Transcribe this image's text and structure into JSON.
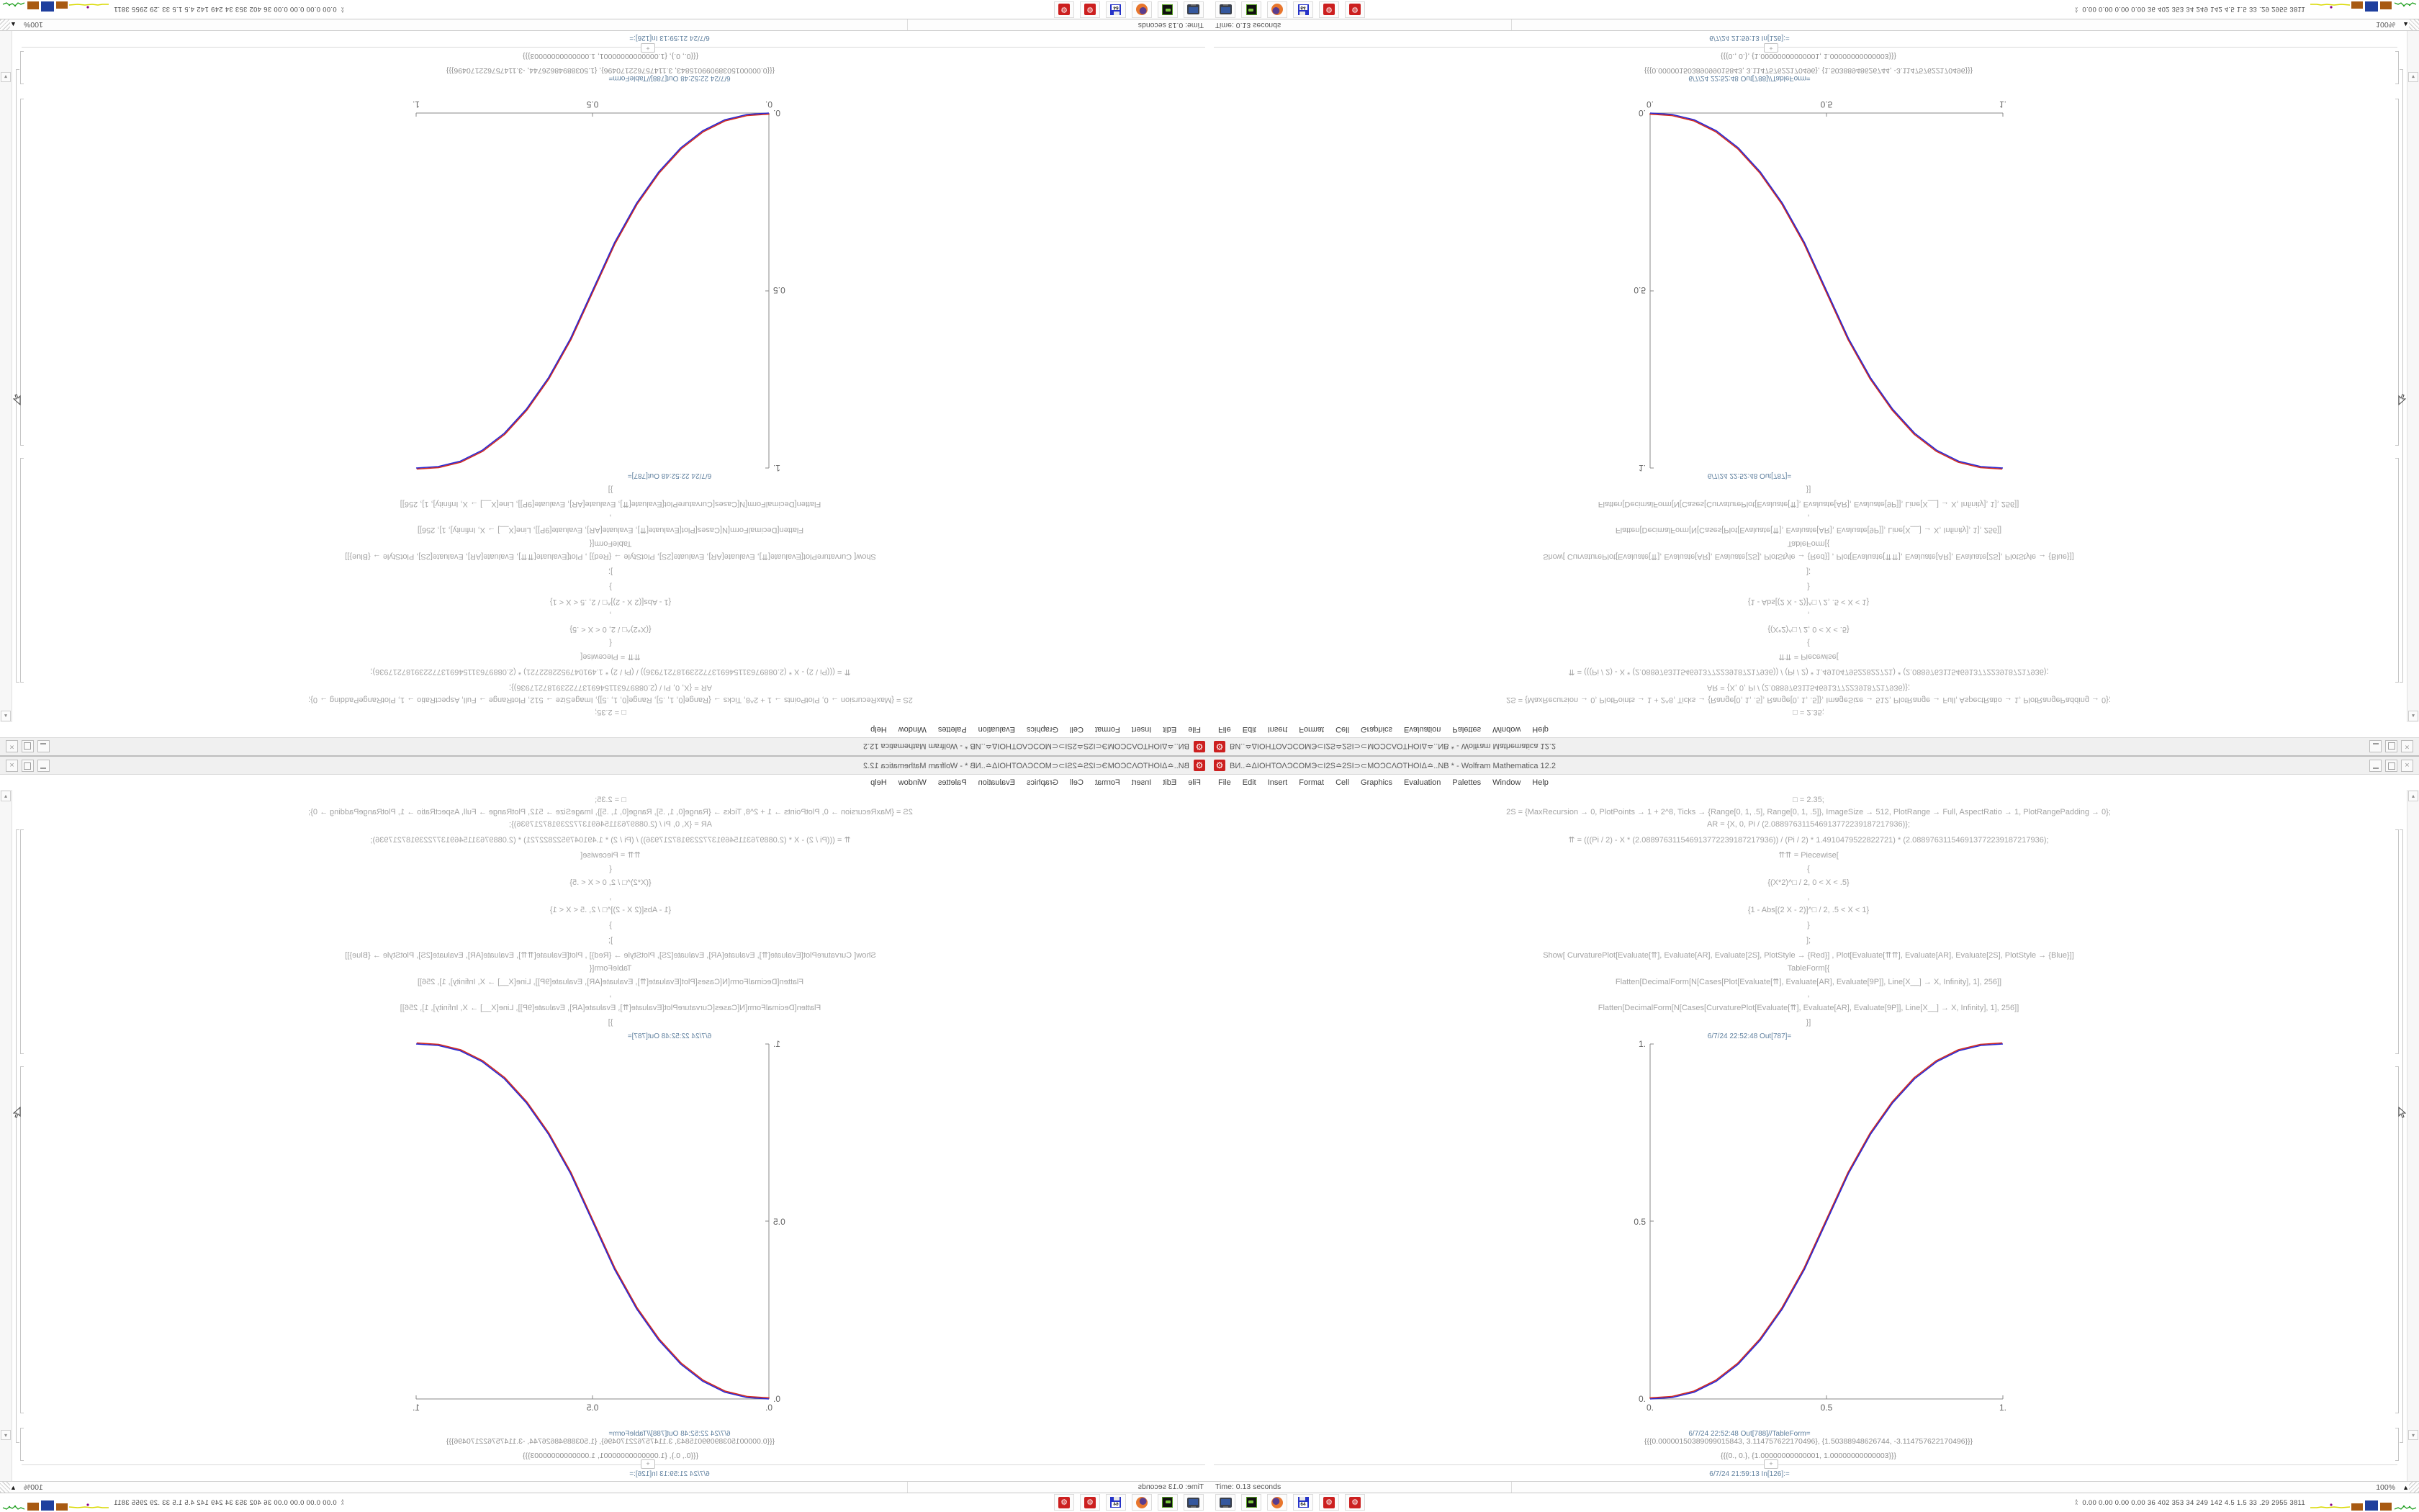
{
  "window": {
    "title": "ВИ..≏ΔΙΟΗΤΟΛϽCOMЭ⊂Ι2S≏2SΙ⊃⊂MOϽCΛΟΤΗΟΙΔ≏..NB * - Wolfram Mathematica 12.2",
    "menu": [
      "File",
      "Edit",
      "Insert",
      "Format",
      "Cell",
      "Graphics",
      "Evaluation",
      "Palettes",
      "Window",
      "Help"
    ],
    "minimize_glyph": "",
    "close_glyph": "×",
    "status_time": "Time: 0.13 seconds",
    "zoom_level": "100%",
    "zoom_popup_glyph": "▲",
    "scroll_up_glyph": "▴",
    "scroll_dropdown_glyph": "▾"
  },
  "notebook": {
    "lines": [
      "□ = 2.35;",
      "2S = {MaxRecursion → 0, PlotPoints → 1 + 2^8, Ticks → {Range[0, 1, .5], Range[0, 1, .5]}, ImageSize → 512, PlotRange → Full, AspectRatio → 1, PlotRangePadding → 0};",
      "AR = {X, 0, Pi / (2.088976311546913772239187217936)};",
      "⇈ = (((Pi / 2) - X * (2.088976311546913772239187217936)) / (Pi / 2) * 1.4910479522822721) * (2.088976311546913772239187217936);",
      "⇈⇈ = Piecewise[",
      "{",
      "{(X*2)^□ / 2, 0 < X < .5}",
      ",",
      "{1 - Abs[(2 X - 2)]^□ / 2, .5 < X < 1}",
      "}",
      "];",
      "Show[  CurvaturePlot[Evaluate[⇈], Evaluate[AR], Evaluate[2S], PlotStyle → {Red}]  ,  Plot[Evaluate[⇈⇈], Evaluate[AR], Evaluate[2S], PlotStyle → {Blue}]]",
      "TableForm[{",
      "Flatten[DecimalForm[N[Cases[Plot[Evaluate[⇈], Evaluate[AR], Evaluate[9P]], Line[X__] → X, Infinity], 1], 256]]",
      ",",
      "Flatten[DecimalForm[N[Cases[CurvaturePlot[Evaluate[⇈], Evaluate[AR], Evaluate[9P]], Line[X__] → X, Infinity], 1], 256]]",
      "}]"
    ],
    "out_plot_label": "6/7/24 22:52:48 Out[787]=",
    "out_table_label": "6/7/24 22:52:48 Out[788]//TableForm=",
    "table_row_1": "{{{0.00000150389099015843, 3.114757622170496}, {1.50388948626744, -3.114757622170496}}}",
    "table_row_2": "{{{0., 0.}, {1.00000000000001, 1.00000000000003}}}",
    "insert_plus_glyph": "+",
    "in_label": "6/7/24 21:59:13 In[126]:="
  },
  "chart_data": {
    "type": "line",
    "title": "",
    "xlabel": "",
    "ylabel": "",
    "xlim": [
      0,
      1
    ],
    "ylim": [
      0,
      1
    ],
    "grid": false,
    "legend_position": "none",
    "x_ticks": [
      "0.",
      "0.5",
      "1."
    ],
    "y_ticks": [
      "0.",
      "0.5",
      "1."
    ],
    "series": [
      {
        "name": "CurvaturePlot (Red)",
        "color": "#d42a1e",
        "x": [
          0,
          0.0625,
          0.125,
          0.1875,
          0.25,
          0.3125,
          0.375,
          0.4375,
          0.5,
          0.5625,
          0.625,
          0.6875,
          0.75,
          0.8125,
          0.875,
          0.9375,
          1
        ],
        "y": [
          0,
          0.004,
          0.019,
          0.05,
          0.098,
          0.166,
          0.254,
          0.365,
          0.5,
          0.635,
          0.746,
          0.834,
          0.902,
          0.95,
          0.981,
          0.996,
          1
        ]
      },
      {
        "name": "Plot (Blue)",
        "color": "#2a2ad4",
        "x": [
          0,
          0.0625,
          0.125,
          0.1875,
          0.25,
          0.3125,
          0.375,
          0.4375,
          0.5,
          0.5625,
          0.625,
          0.6875,
          0.75,
          0.8125,
          0.875,
          0.9375,
          1
        ],
        "y": [
          0,
          0.004,
          0.019,
          0.05,
          0.098,
          0.166,
          0.254,
          0.365,
          0.5,
          0.635,
          0.746,
          0.834,
          0.902,
          0.95,
          0.981,
          0.996,
          1
        ]
      }
    ]
  },
  "taskbar": {
    "floppy_label": "64",
    "chevron_glyph": "∧",
    "monitor_values": "0.00 0.00 0.00 0.00   36   402   353   34   249   142   4.5   1.5   33   .29  2955 3811"
  }
}
